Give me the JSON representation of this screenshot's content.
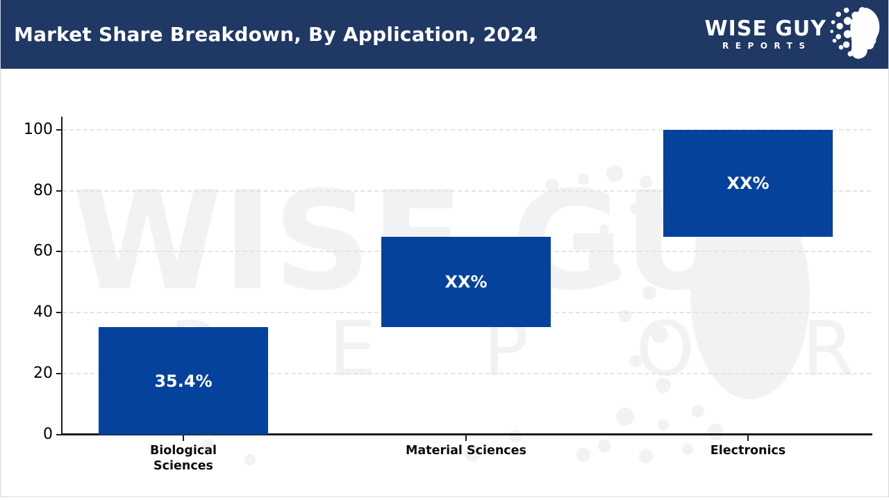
{
  "header": {
    "title": "Market Share Breakdown, By Application, 2024",
    "logo": {
      "line1": "WISE GUY",
      "line2": "REPORTS"
    }
  },
  "watermark": {
    "line1": "WISE GUY",
    "line2": "R E P O R T S"
  },
  "colors": {
    "header_bg": "#1f3864",
    "bar": "#05429b",
    "grid": "#e3e3e5",
    "axis": "#1b1b1b",
    "bar_label_text": "#ffffff",
    "watermark": "#f2f2f4"
  },
  "chart_data": {
    "type": "bar",
    "subtype": "waterfall",
    "title": "Market Share Breakdown, By Application, 2024",
    "categories": [
      "Biological Sciences",
      "Material Sciences",
      "Electronics"
    ],
    "tick_labels": [
      "Biological\nSciences",
      "Material Sciences",
      "Electronics"
    ],
    "segments": [
      {
        "category": "Biological Sciences",
        "start": 0,
        "end": 35.4,
        "label": "35.4%"
      },
      {
        "category": "Material Sciences",
        "start": 35.4,
        "end": 65,
        "label": "XX%"
      },
      {
        "category": "Electronics",
        "start": 65,
        "end": 100,
        "label": "XX%"
      }
    ],
    "ylim": [
      0,
      100
    ],
    "yticks": [
      0,
      20,
      40,
      60,
      80,
      100
    ],
    "xlabel": "",
    "ylabel": "",
    "grid": "horizontal dashed",
    "legend": "none"
  }
}
